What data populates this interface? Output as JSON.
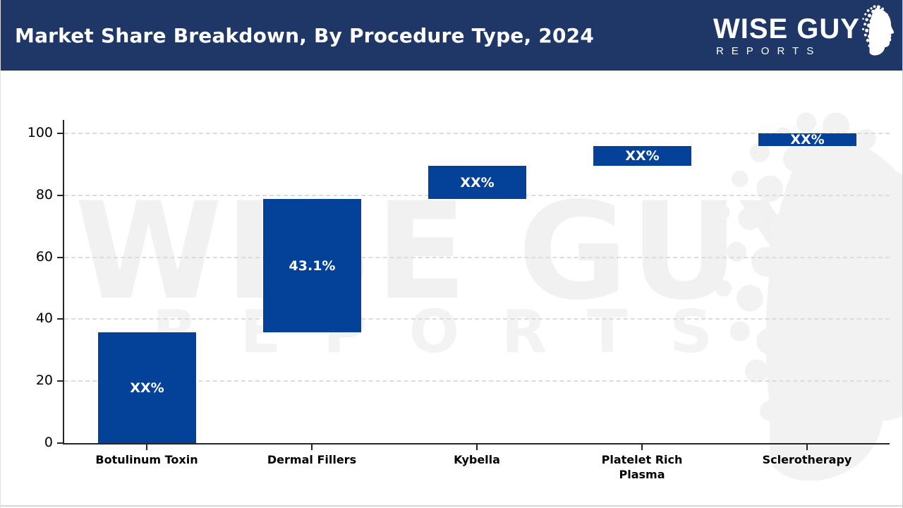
{
  "header": {
    "title": "Market Share Breakdown, By Procedure Type, 2024",
    "logo": {
      "line1": "WISE GUY",
      "line2": "REPORTS"
    }
  },
  "watermark": {
    "line1": "WISE GUY",
    "line2": "REPORTS"
  },
  "colors": {
    "header_bg": "#1F3766",
    "bar": "#04429A",
    "axis": "#262626",
    "grid": "#DCDCDC",
    "bar_label": "#FFFFFF",
    "watermark": "#F1F1F1"
  },
  "chart_data": {
    "type": "bar",
    "subtype": "waterfall",
    "title": "Market Share Breakdown, By Procedure Type, 2024",
    "categories": [
      "Botulinum Toxin",
      "Dermal Fillers",
      "Kybella",
      "Platelet Rich Plasma",
      "Sclerotherapy"
    ],
    "segments": [
      {
        "category": "Botulinum Toxin",
        "start": 0,
        "end": 35.7,
        "label": "XX%"
      },
      {
        "category": "Dermal Fillers",
        "start": 35.7,
        "end": 78.8,
        "label": "43.1%"
      },
      {
        "category": "Kybella",
        "start": 78.8,
        "end": 89.6,
        "label": "XX%"
      },
      {
        "category": "Platelet Rich Plasma",
        "start": 89.6,
        "end": 95.9,
        "label": "XX%"
      },
      {
        "category": "Sclerotherapy",
        "start": 95.9,
        "end": 100,
        "label": "XX%"
      }
    ],
    "xlabel": "",
    "ylabel": "",
    "ylim": [
      0,
      100
    ],
    "yticks": [
      0,
      20,
      40,
      60,
      80,
      100
    ],
    "grid": "horizontal-dashed",
    "legend": false
  }
}
